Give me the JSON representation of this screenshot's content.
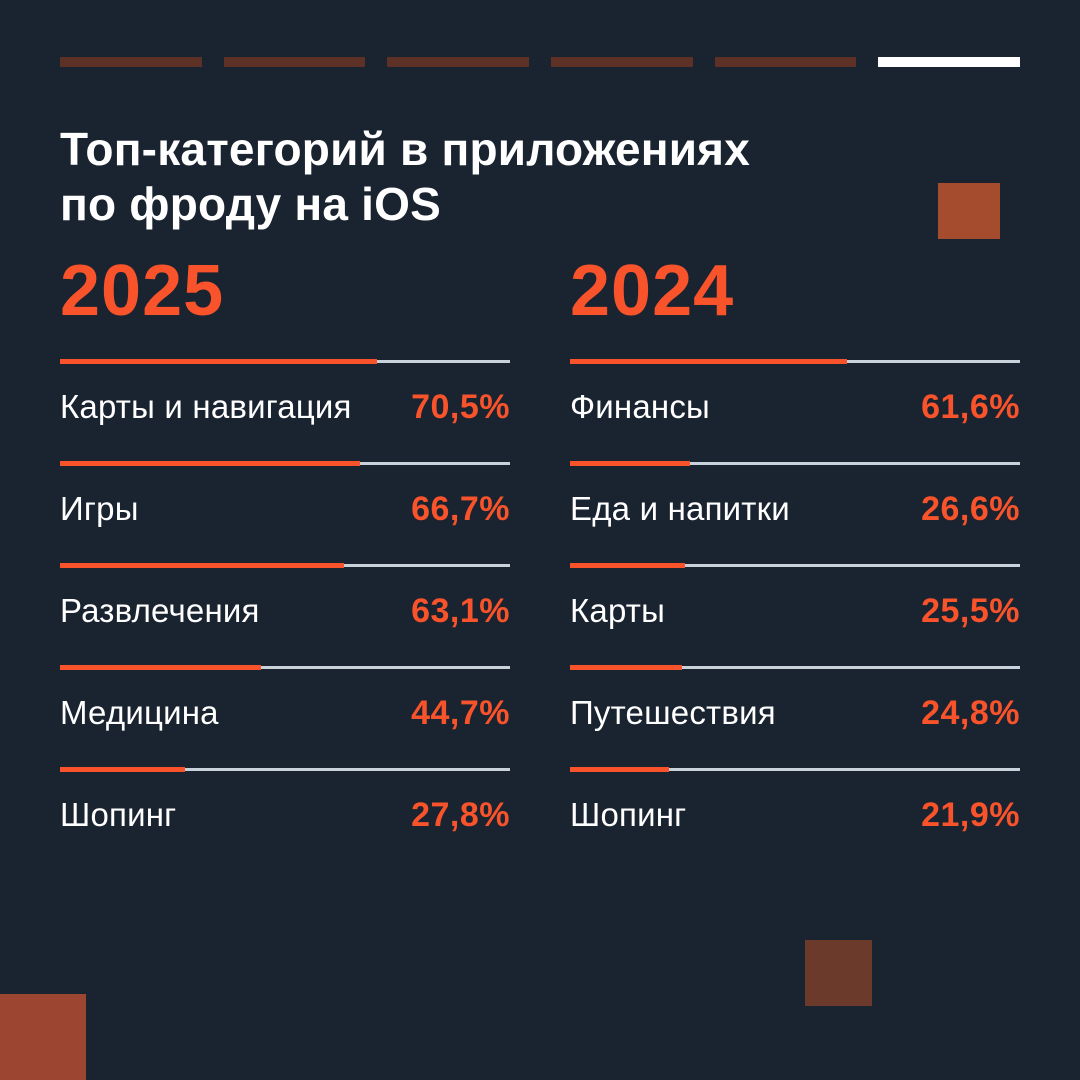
{
  "header": {
    "title_line1": "Топ-категорий в приложениях",
    "title_line2": "по фроду на iOS"
  },
  "pagination": {
    "total_segments": 6,
    "active_segment": 6
  },
  "colors": {
    "background": "#1a2330",
    "accent_orange": "#f8532a",
    "line_gray": "#c9d1da",
    "segment_brown": "#5e3126",
    "square_brick": "#a54b2e",
    "square_rust": "#9c4632",
    "square_dark_brown": "#6b3a2a"
  },
  "chart_data": [
    {
      "type": "bar",
      "title": "2025",
      "categories": [
        "Карты и навигация",
        "Игры",
        "Развлечения",
        "Медицина",
        "Шопинг"
      ],
      "values": [
        70.5,
        66.7,
        63.1,
        44.7,
        27.8
      ],
      "value_labels": [
        "70,5%",
        "66,7%",
        "63,1%",
        "44,7%",
        "27,8%"
      ],
      "xlim": [
        0,
        100
      ],
      "legend": "none",
      "grid": false
    },
    {
      "type": "bar",
      "title": "2024",
      "categories": [
        "Финансы",
        "Еда и напитки",
        "Карты",
        "Путешествия",
        "Шопинг"
      ],
      "values": [
        61.6,
        26.6,
        25.5,
        24.8,
        21.9
      ],
      "value_labels": [
        "61,6%",
        "26,6%",
        "25,5%",
        "24,8%",
        "21,9%"
      ],
      "xlim": [
        0,
        100
      ],
      "legend": "none",
      "grid": false
    }
  ]
}
